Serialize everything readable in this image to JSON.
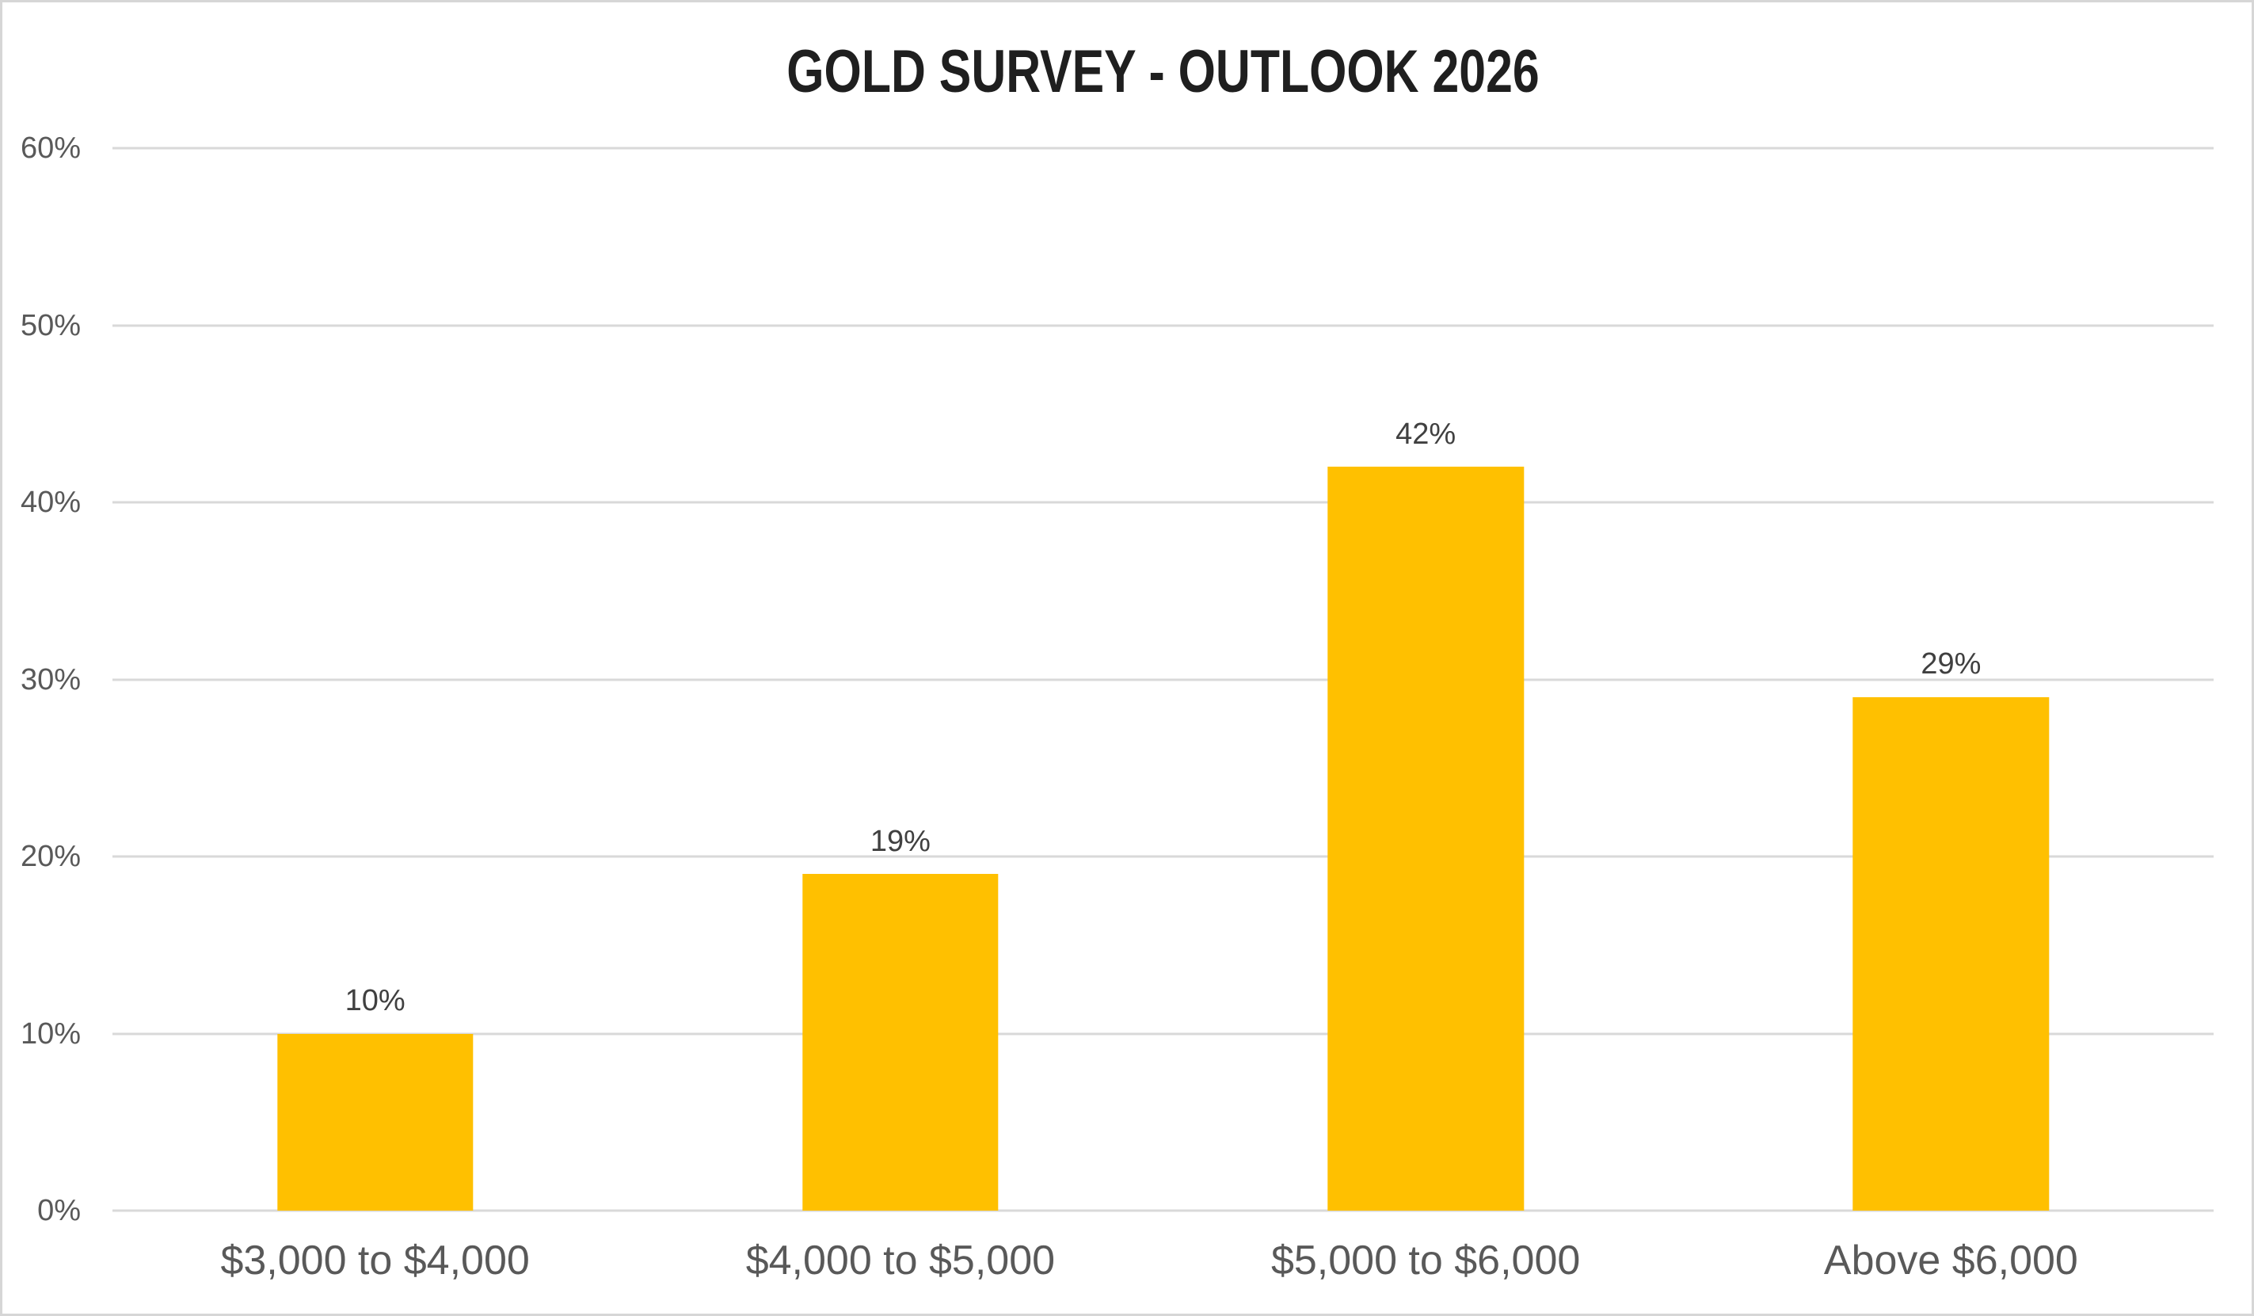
{
  "chart_data": {
    "type": "bar",
    "title": "GOLD SURVEY - OUTLOOK 2026",
    "categories": [
      "$3,000 to $4,000",
      "$4,000 to $5,000",
      "$5,000 to $6,000",
      "Above $6,000"
    ],
    "values": [
      10,
      19,
      42,
      29
    ],
    "data_labels": [
      "10%",
      "19%",
      "42%",
      "29%"
    ],
    "xlabel": "",
    "ylabel": "",
    "ylim": [
      0,
      60
    ],
    "ytick_values": [
      0,
      10,
      20,
      30,
      40,
      50,
      60
    ],
    "ytick_labels": [
      "0%",
      "10%",
      "20%",
      "30%",
      "40%",
      "50%",
      "60%"
    ],
    "grid": "horizontal",
    "legend_position": "none",
    "colors": {
      "bar": "#FFC000",
      "gridline": "#D9D9D9",
      "tick_text": "#595959",
      "category_text": "#595959",
      "data_label_text": "#404040",
      "title_text": "#1F1F1F",
      "background": "#FFFFFF",
      "frame_border": "#D6D6D6"
    }
  }
}
